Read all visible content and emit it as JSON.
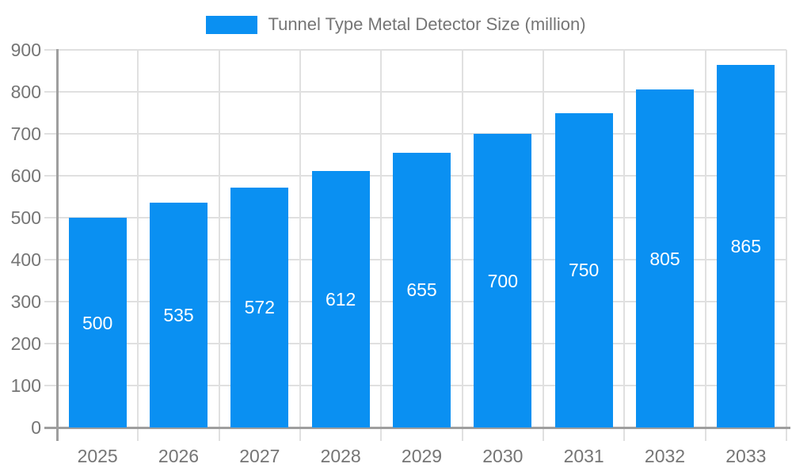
{
  "legend": {
    "label": "Tunnel Type Metal Detector Size (million)"
  },
  "colors": {
    "bar": "#0A90F2",
    "grid": "#e0e0e0",
    "axis": "#9e9e9e",
    "text": "#757575",
    "value_label": "#ffffff",
    "background": "#ffffff"
  },
  "chart_data": {
    "type": "bar",
    "title": "Tunnel Type Metal Detector Size (million)",
    "categories": [
      "2025",
      "2026",
      "2027",
      "2028",
      "2029",
      "2030",
      "2031",
      "2032",
      "2033"
    ],
    "values": [
      500,
      535,
      572,
      612,
      655,
      700,
      750,
      805,
      865
    ],
    "xlabel": "",
    "ylabel": "",
    "ylim": [
      0,
      900
    ],
    "ytick_step": 100,
    "grid": true,
    "legend_position": "top",
    "value_labels": "inside-center"
  }
}
